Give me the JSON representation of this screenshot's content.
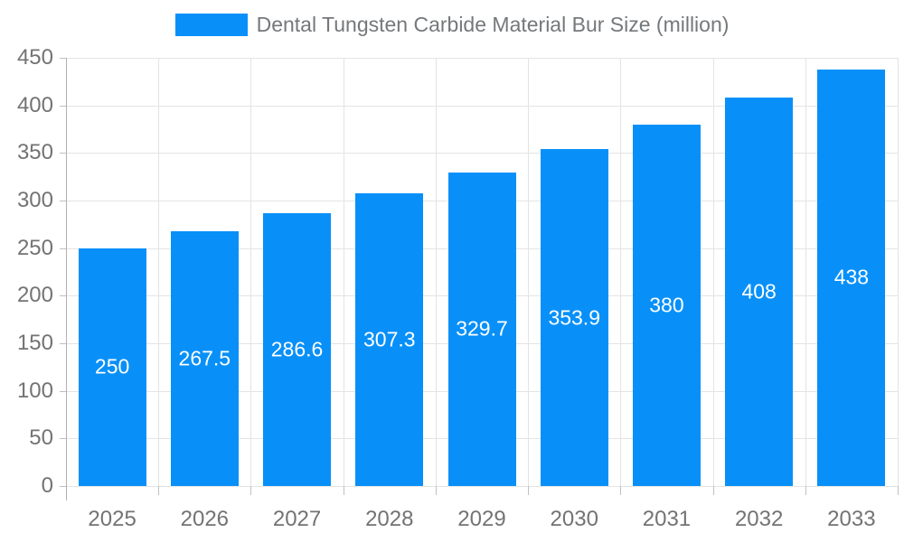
{
  "legend": {
    "label": "Dental Tungsten Carbide Material Bur Size (million)"
  },
  "colors": {
    "bar": "#0890f8",
    "grid_line": "#e4e4e4",
    "axis_line": "#b0b0b0",
    "tick_mark": "#c0c0c0",
    "axis_text": "#737373",
    "legend_text": "#75787b",
    "bar_label_text": "#ffffff",
    "background": "#ffffff"
  },
  "chart_data": {
    "type": "bar",
    "title": "Dental Tungsten Carbide Material Bur Size (million)",
    "categories": [
      "2025",
      "2026",
      "2027",
      "2028",
      "2029",
      "2030",
      "2031",
      "2032",
      "2033"
    ],
    "values": [
      250,
      267.5,
      286.6,
      307.3,
      329.7,
      353.9,
      380,
      408,
      438
    ],
    "xlabel": "",
    "ylabel": "",
    "ylim": [
      0,
      450
    ],
    "ytick_step": 50,
    "ytick_labels": [
      "0",
      "50",
      "100",
      "150",
      "200",
      "250",
      "300",
      "350",
      "400",
      "450"
    ],
    "grid": true,
    "legend_position": "top-center",
    "bar_labels": "inside-center"
  }
}
